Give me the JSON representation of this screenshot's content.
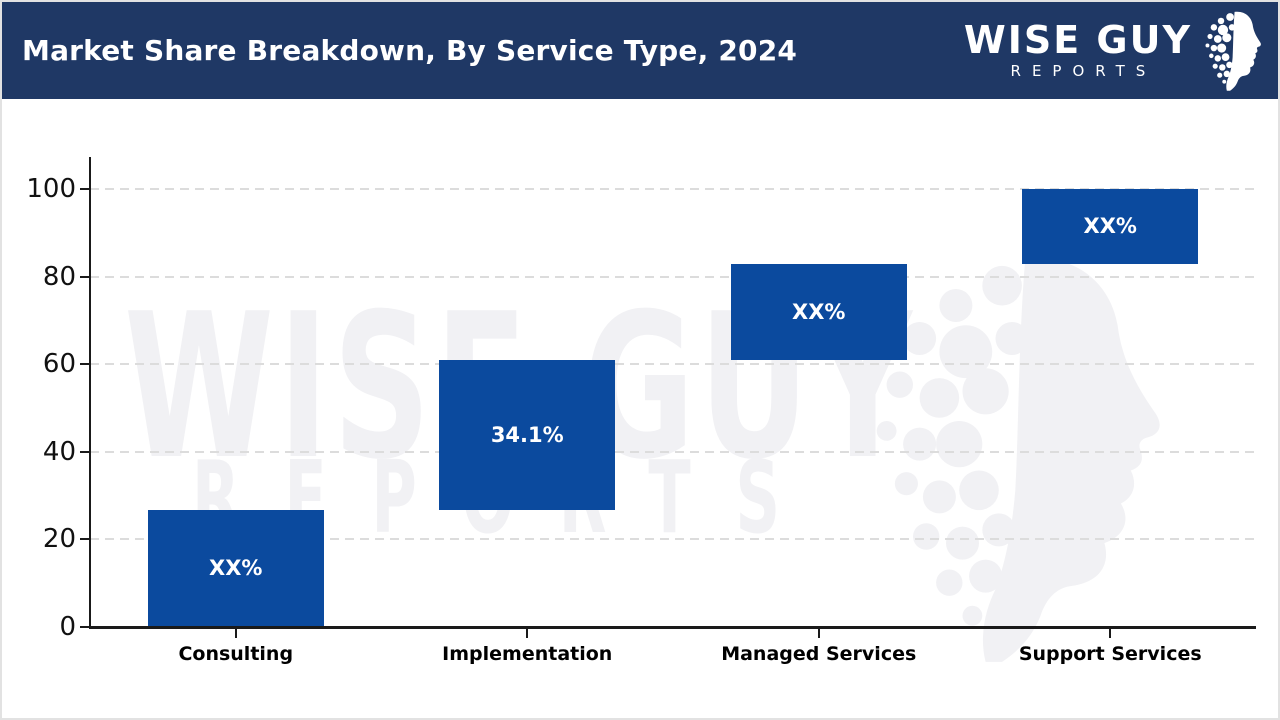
{
  "header": {
    "title": "Market Share Breakdown, By Service Type, 2024",
    "logo": {
      "name": "WISE GUY",
      "tagline": "REPORTS"
    }
  },
  "watermark": {
    "line1": "WISE GUY",
    "line2": "REPORTS"
  },
  "colors": {
    "header_bg": "#1f3865",
    "bar": "#0b4a9e",
    "grid": "#dcdcdc",
    "axis": "#1a1a1a",
    "watermark": "#f1f1f4",
    "label_on_bar": "#ffffff"
  },
  "chart_data": {
    "type": "bar",
    "subtype": "floating-waterfall",
    "title": "Market Share Breakdown, By Service Type, 2024",
    "categories": [
      "Consulting",
      "Implementation",
      "Managed Services",
      "Support Services"
    ],
    "segments": [
      {
        "category": "Consulting",
        "start": 0,
        "end": 26.8,
        "label": "XX%"
      },
      {
        "category": "Implementation",
        "start": 26.8,
        "end": 60.9,
        "label": "34.1%"
      },
      {
        "category": "Managed Services",
        "start": 60.9,
        "end": 82.9,
        "label": "XX%"
      },
      {
        "category": "Support Services",
        "start": 82.9,
        "end": 100,
        "label": "XX%"
      }
    ],
    "xlabel": "",
    "ylabel": "",
    "yticks": [
      0,
      20,
      40,
      60,
      80,
      100
    ],
    "ylim": [
      0,
      107
    ],
    "grid": "horizontal-dashed",
    "legend": false
  }
}
